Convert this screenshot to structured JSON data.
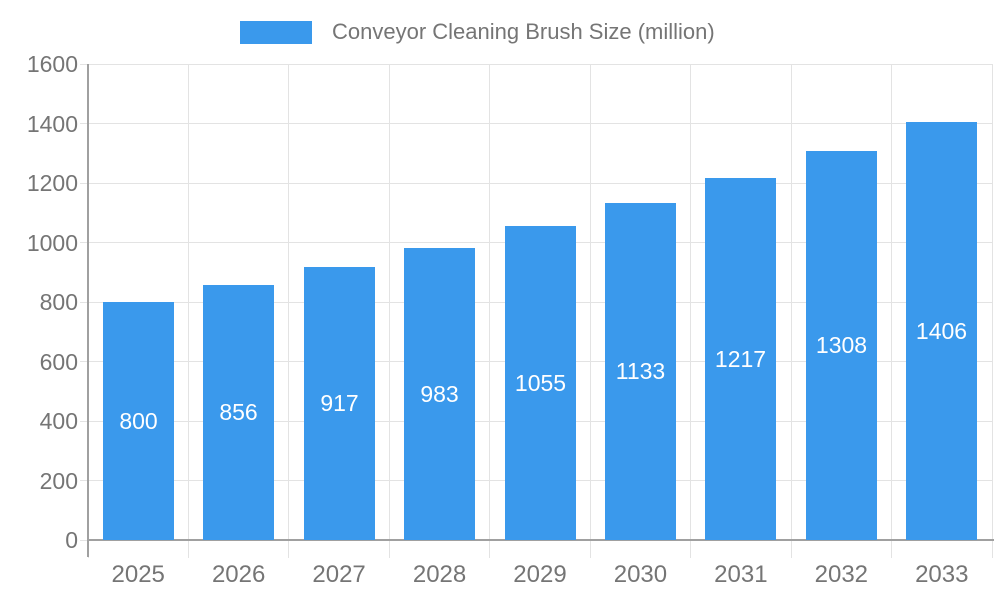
{
  "legend": {
    "label": "Conveyor Cleaning Brush Size (million)"
  },
  "colors": {
    "bar": "#3A99EC",
    "grid": "#E3E3E3",
    "axis": "#A0A0A0",
    "text": "#757575",
    "bar_label": "#FFFFFF",
    "background": "#FFFFFF"
  },
  "chart_data": {
    "type": "bar",
    "title": "Conveyor Cleaning Brush Size (million)",
    "series_name": "Conveyor Cleaning Brush Size (million)",
    "categories": [
      "2025",
      "2026",
      "2027",
      "2028",
      "2029",
      "2030",
      "2031",
      "2032",
      "2033"
    ],
    "values": [
      800,
      856,
      917,
      983,
      1055,
      1133,
      1217,
      1308,
      1406
    ],
    "xlabel": "",
    "ylabel": "",
    "ylim": [
      0,
      1600
    ],
    "ytick_step": 200,
    "ytick_labels": [
      "0",
      "200",
      "400",
      "600",
      "800",
      "1000",
      "1200",
      "1400",
      "1600"
    ],
    "grid": true,
    "legend_position": "top-center",
    "bar_value_labels": true
  }
}
